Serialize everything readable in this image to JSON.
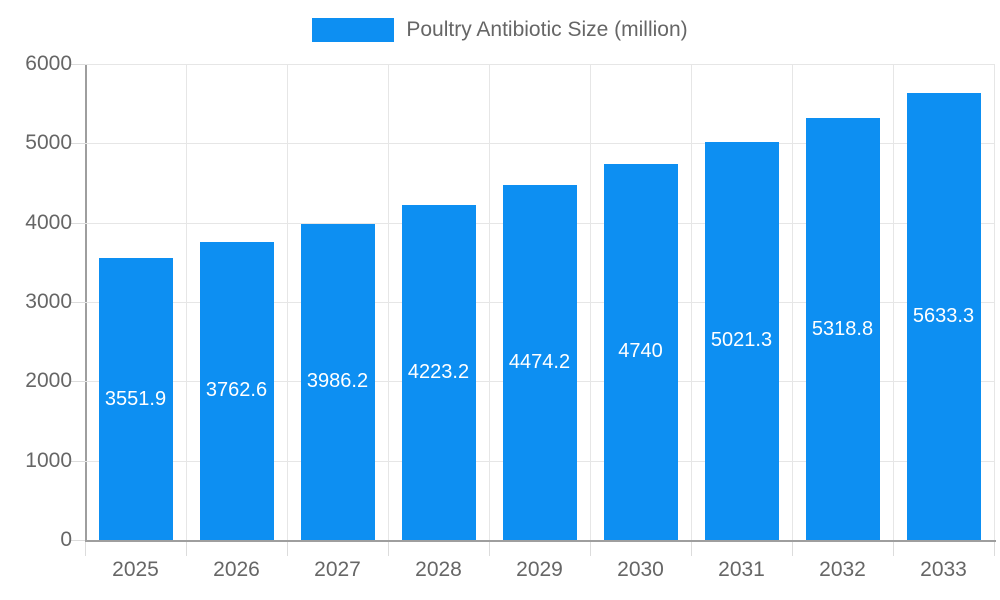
{
  "legend": {
    "label": "Poultry Antibiotic Size (million)"
  },
  "chart_data": {
    "type": "bar",
    "title": "Poultry Antibiotic Size (million)",
    "categories": [
      "2025",
      "2026",
      "2027",
      "2028",
      "2029",
      "2030",
      "2031",
      "2032",
      "2033"
    ],
    "values": [
      3551.9,
      3762.6,
      3986.2,
      4223.2,
      4474.2,
      4740,
      5021.3,
      5318.8,
      5633.3
    ],
    "xlabel": "",
    "ylabel": "",
    "ylim": [
      0,
      6000
    ],
    "yticks": [
      0,
      1000,
      2000,
      3000,
      4000,
      5000,
      6000
    ],
    "grid": true,
    "legend_position": "top-center",
    "bar_color": "#0d8ff2",
    "value_label_color": "#ffffff",
    "axis_text_color": "#666666",
    "grid_color": "#e6e6e6",
    "axis_line_color": "#9e9e9e"
  }
}
